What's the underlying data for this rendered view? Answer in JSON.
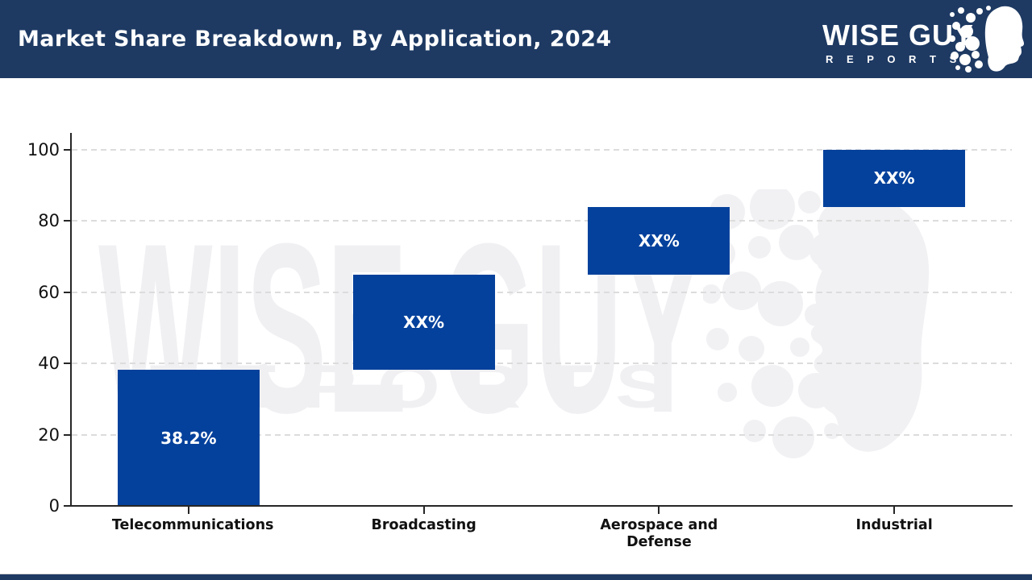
{
  "colors": {
    "header_bg": "#1e3a63",
    "footer_bg": "#1e3a63",
    "bar": "#04419c",
    "grid": "#dcdcdc",
    "axis": "#262626",
    "watermark": "#f0f0f3"
  },
  "header": {
    "title": "Market Share Breakdown, By Application, 2024",
    "logo": {
      "line1": "WISE GUY",
      "line2": "R E P O R T S"
    }
  },
  "watermark": {
    "line1": "WISE GUY",
    "line2": "R E P O R T S"
  },
  "chart_data": {
    "type": "bar",
    "subtype": "waterfall",
    "title": "Market Share Breakdown, By Application, 2024",
    "xlabel": "",
    "ylabel": "",
    "ylim": [
      0,
      105
    ],
    "yticks": [
      0,
      20,
      40,
      60,
      80,
      100
    ],
    "grid": true,
    "legend": null,
    "bar_color": "#04419c",
    "categories": [
      "Telecommunications",
      "Broadcasting",
      "Aerospace and Defense",
      "Industrial"
    ],
    "segments": [
      {
        "category": "Telecommunications",
        "start": 0,
        "end": 38.2,
        "label": "38.2%"
      },
      {
        "category": "Broadcasting",
        "start": 38.2,
        "end": 65,
        "label": "XX%"
      },
      {
        "category": "Aerospace and Defense",
        "start": 65,
        "end": 84,
        "label": "XX%"
      },
      {
        "category": "Industrial",
        "start": 84,
        "end": 100,
        "label": "XX%"
      }
    ]
  }
}
